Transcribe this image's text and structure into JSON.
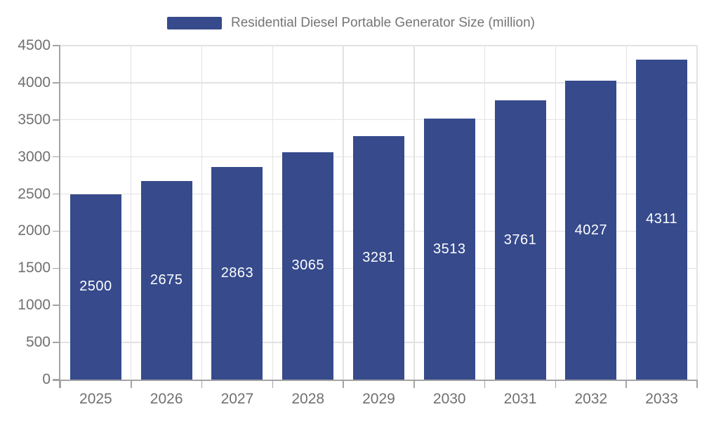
{
  "legend": {
    "label": "Residential Diesel Portable Generator Size (million)"
  },
  "chart_data": {
    "type": "bar",
    "title": "Residential Diesel Portable Generator Size (million)",
    "series_name": "Residential Diesel Portable Generator Size (million)",
    "categories": [
      "2025",
      "2026",
      "2027",
      "2028",
      "2029",
      "2030",
      "2031",
      "2032",
      "2033"
    ],
    "values": [
      2500,
      2675,
      2863,
      3065,
      3281,
      3513,
      3761,
      4027,
      4311
    ],
    "xlabel": "",
    "ylabel": "",
    "ylim": [
      0,
      4500
    ],
    "y_ticks": [
      0,
      500,
      1000,
      1500,
      2000,
      2500,
      3000,
      3500,
      4000,
      4500
    ],
    "grid": true,
    "legend_position": "top",
    "bar_color": "#364a8c",
    "value_label_color": "#ffffff"
  },
  "colors": {
    "bar": "#364a8c",
    "grid": "#e2e2e2",
    "axis": "#a4a4a4",
    "tick_label": "#707070",
    "legend_text": "#757575",
    "background": "#ffffff"
  }
}
